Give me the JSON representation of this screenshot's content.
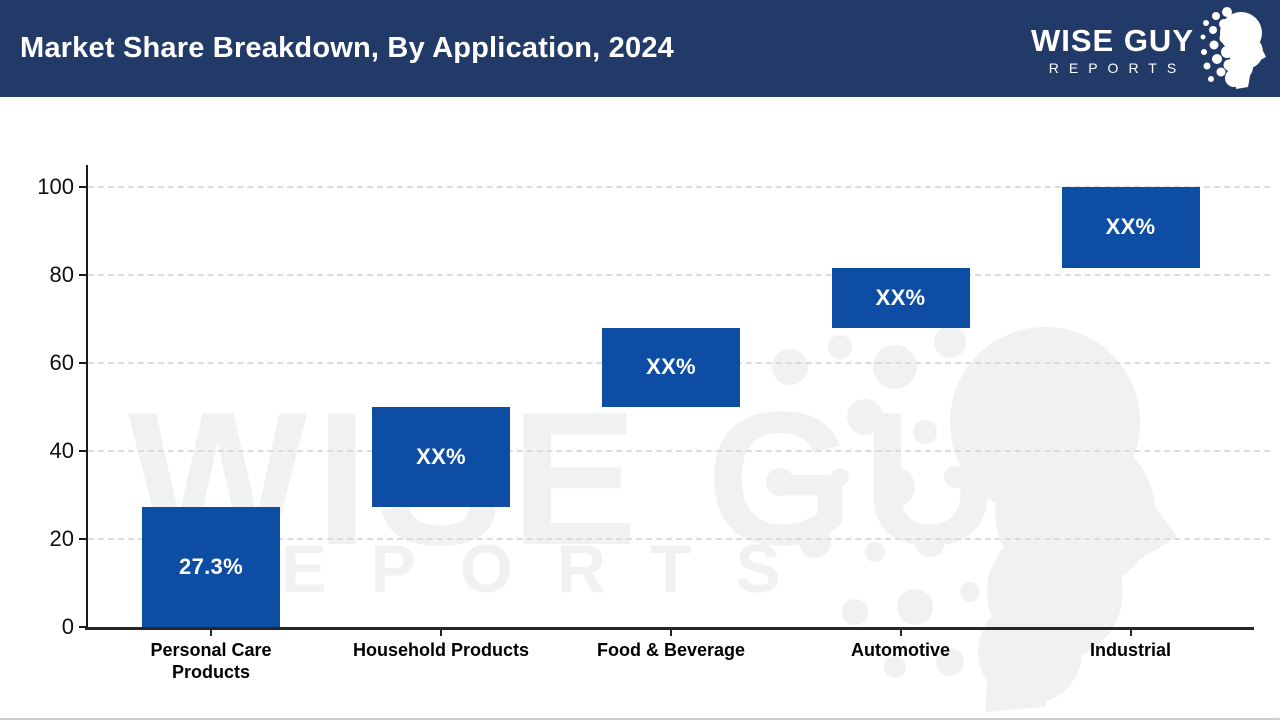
{
  "header": {
    "title": "Market Share Breakdown, By Application, 2024",
    "logo": {
      "line1": "WISE GUY",
      "line2": "REPORTS"
    }
  },
  "watermark": {
    "line1": "WISE GUY",
    "line2": "REPORTS"
  },
  "colors": {
    "header_bg": "#223A68",
    "bar": "#0D4DA3",
    "bar_label": "#FFFFFF",
    "grid": "#DCDCDC",
    "axis": "#1A1A1A",
    "watermark": "#F0F1F3"
  },
  "chart_data": {
    "type": "bar",
    "subtype": "floating-waterfall",
    "title": "Market Share Breakdown, By Application, 2024",
    "xlabel": "",
    "ylabel": "",
    "categories": [
      "Personal Care Products",
      "Household Products",
      "Food & Beverage",
      "Automotive",
      "Industrial"
    ],
    "xticklabels": [
      "Personal Care\nProducts",
      "Household Products",
      "Food & Beverage",
      "Automotive",
      "Industrial"
    ],
    "segments": [
      {
        "category": "Personal Care Products",
        "start": 0,
        "end": 27.3,
        "label": "27.3%"
      },
      {
        "category": "Household Products",
        "start": 27.3,
        "end": 50,
        "label": "XX%"
      },
      {
        "category": "Food & Beverage",
        "start": 50,
        "end": 68,
        "label": "XX%"
      },
      {
        "category": "Automotive",
        "start": 68,
        "end": 81.6,
        "label": "XX%"
      },
      {
        "category": "Industrial",
        "start": 81.6,
        "end": 100,
        "label": "XX%"
      }
    ],
    "yticks": [
      0,
      20,
      40,
      60,
      80,
      100
    ],
    "ylim": [
      0,
      105
    ],
    "grid": "horizontal-dashed",
    "legend": false
  }
}
